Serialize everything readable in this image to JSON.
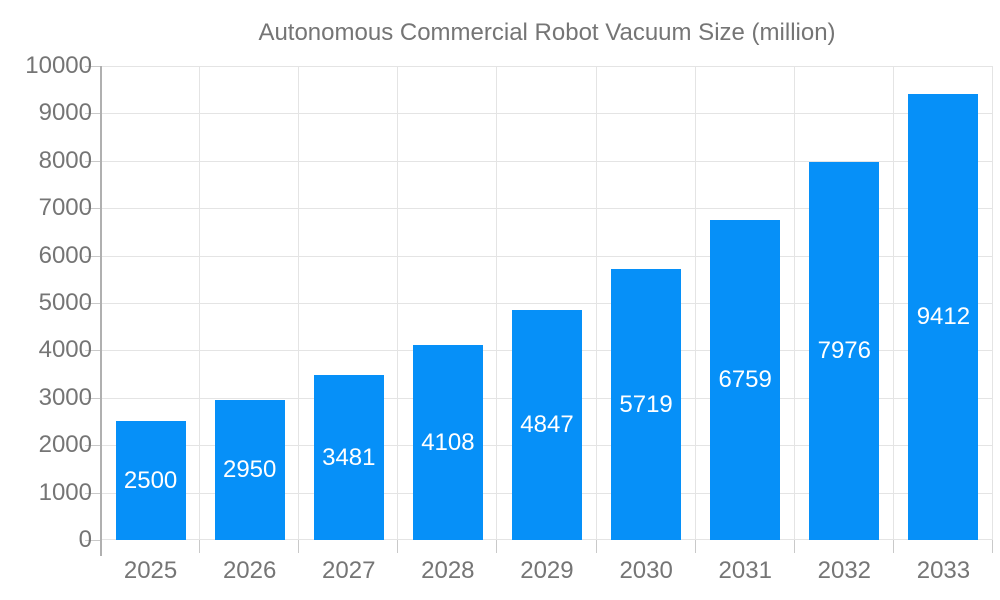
{
  "chart_data": {
    "type": "bar",
    "title": "Autonomous Commercial Robot Vacuum Size (million)",
    "categories": [
      "2025",
      "2026",
      "2027",
      "2028",
      "2029",
      "2030",
      "2031",
      "2032",
      "2033"
    ],
    "values": [
      2500,
      2950,
      3481,
      4108,
      4847,
      5719,
      6759,
      7976,
      9412
    ],
    "xlabel": "",
    "ylabel": "",
    "ylim": [
      0,
      10000
    ],
    "yticks": [
      0,
      1000,
      2000,
      3000,
      4000,
      5000,
      6000,
      7000,
      8000,
      9000,
      10000
    ],
    "grid": true,
    "legend_position": "top-center",
    "value_labels": "inside-center-white",
    "colors": {
      "bar": "#0690f8",
      "grid": "#e4e4e4",
      "axis_line": "#b0b0b0",
      "tick": "#c9c9c9",
      "axis_text": "#757575",
      "legend_text": "#757575",
      "bar_label_text": "#ffffff",
      "background": "#ffffff"
    }
  }
}
